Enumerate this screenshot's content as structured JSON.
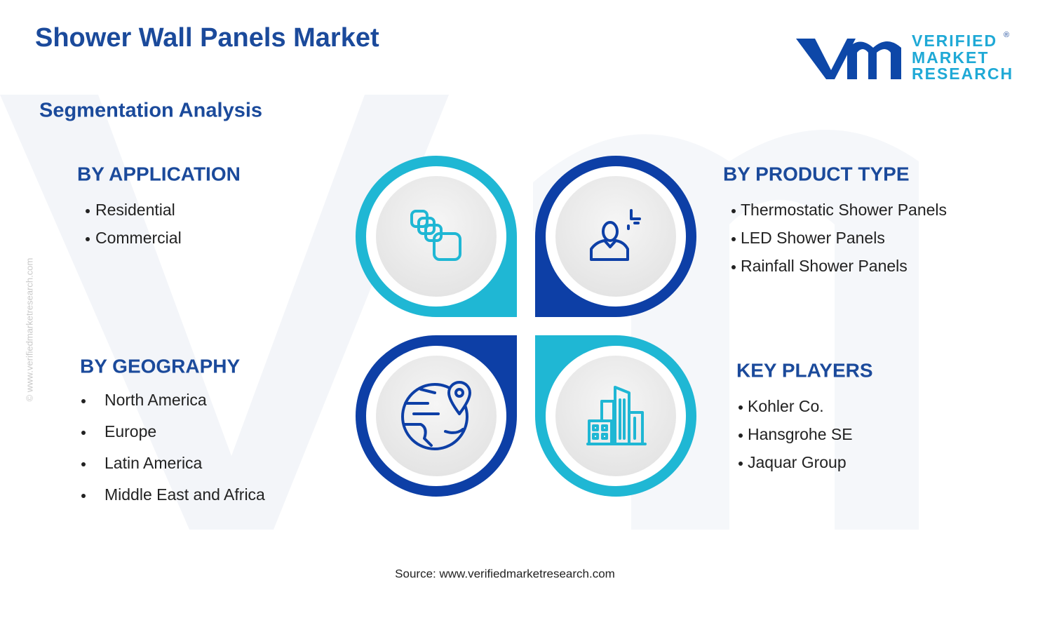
{
  "header": {
    "title": "Shower Wall Panels Market",
    "subtitle": "Segmentation Analysis"
  },
  "logo": {
    "line1": "VERIFIED",
    "line2": "MARKET",
    "line3": "RESEARCH",
    "mark": "®"
  },
  "sections": [
    {
      "heading": "BY APPLICATION",
      "items": [
        "Residential",
        "Commercial"
      ]
    },
    {
      "heading": "BY PRODUCT TYPE",
      "items": [
        "Thermostatic Shower Panels",
        "LED Shower Panels",
        "Rainfall Shower Panels"
      ]
    },
    {
      "heading": "BY GEOGRAPHY",
      "items": [
        "North America",
        "Europe",
        "Latin America",
        "Middle East and Africa"
      ]
    },
    {
      "heading": "KEY PLAYERS",
      "items": [
        "Kohler Co.",
        "Hansgrohe SE",
        "Jaquar Group"
      ]
    }
  ],
  "source": "Source: www.verifiedmarketresearch.com",
  "watermark": "© www.verifiedmarketresearch.com"
}
